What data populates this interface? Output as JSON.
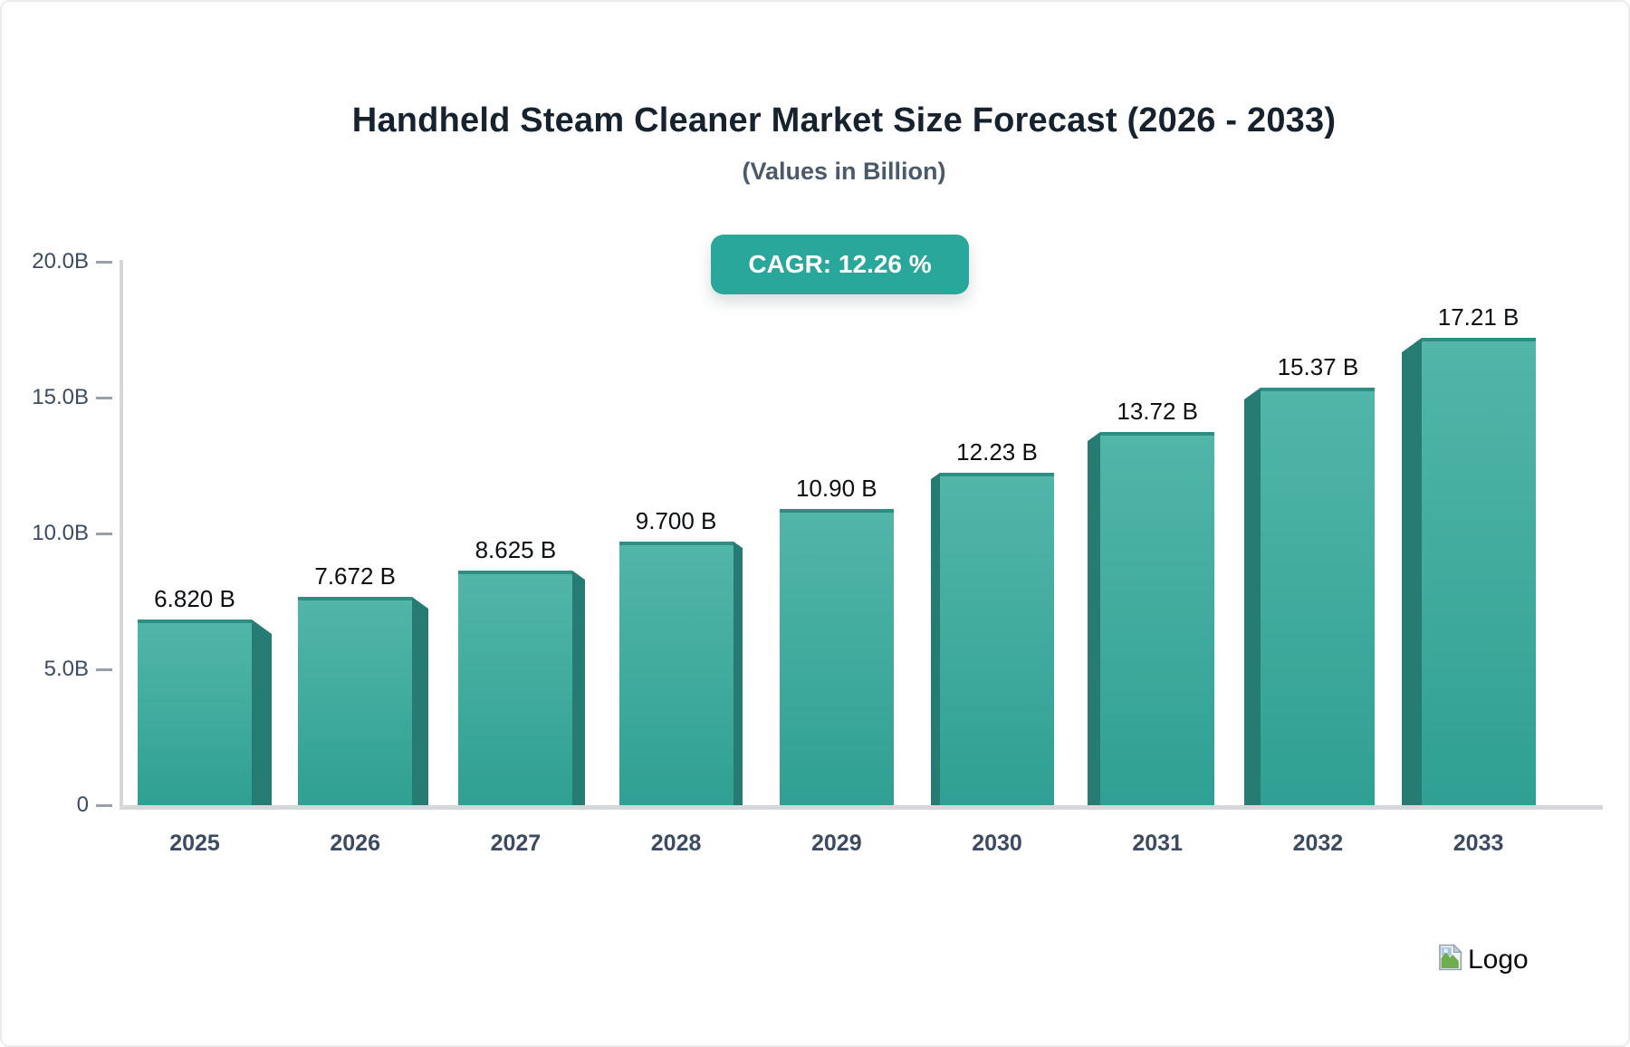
{
  "header": {
    "title": "Handheld Steam Cleaner Market Size Forecast (2026 - 2033)",
    "subtitle": "(Values in Billion)"
  },
  "badge": {
    "label": "CAGR: 12.26 %",
    "bg": "#2aa79b",
    "text_color": "#ffffff"
  },
  "chart_data": {
    "type": "bar",
    "title": "Handheld Steam Cleaner Market Size Forecast (2026 - 2033)",
    "subtitle": "(Values in Billion)",
    "categories": [
      "2025",
      "2026",
      "2027",
      "2028",
      "2029",
      "2030",
      "2031",
      "2032",
      "2033"
    ],
    "values": [
      6.82,
      7.672,
      8.625,
      9.7,
      10.9,
      12.23,
      13.72,
      15.37,
      17.21
    ],
    "value_labels": [
      "6.820 B",
      "7.672 B",
      "8.625 B",
      "9.700 B",
      "10.90 B",
      "12.23 B",
      "13.72 B",
      "15.37 B",
      "17.21 B"
    ],
    "cagr_label": "CAGR: 12.26 %",
    "xlabel": "",
    "ylabel": "",
    "ylim": [
      0,
      20
    ],
    "yticks": [
      {
        "value": 0,
        "label": "0"
      },
      {
        "value": 5,
        "label": "5.0B"
      },
      {
        "value": 10,
        "label": "10.0B"
      },
      {
        "value": 15,
        "label": "15.0B"
      },
      {
        "value": 20,
        "label": "20.0B"
      }
    ],
    "grid": false,
    "legend": "none",
    "style": {
      "bar_front_top": "#52b6a9",
      "bar_front_bottom": "#2fa093",
      "bar_side": "#267c72",
      "bar_top_edge": "#2f8e82",
      "axis_color": "#d5d7db",
      "tick_color": "#98a0aa",
      "value_label_color": "#0c0f12",
      "category_label_color": "#3c4b61"
    }
  },
  "footer": {
    "logo_alt_text": "Logo"
  }
}
